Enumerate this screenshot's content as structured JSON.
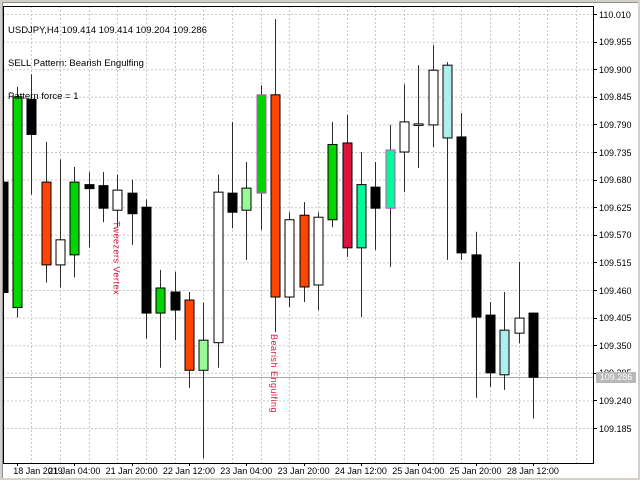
{
  "overlay": {
    "line1": "USDJPY,H4 109.414 109.414 109.204 109.286",
    "line2": "SELL Pattern: Bearish Engulfing",
    "line3": "Pattern force = 1"
  },
  "chart_data": {
    "type": "candlestick",
    "symbol": "USDJPY",
    "timeframe": "H4",
    "ohlc_display": {
      "open": "109.414",
      "high": "109.414",
      "low": "109.204",
      "close": "109.286"
    },
    "y_axis": {
      "max": 110.01,
      "min": 109.185,
      "step": 0.055,
      "labels": [
        "110.010",
        "109.955",
        "109.900",
        "109.845",
        "109.790",
        "109.735",
        "109.680",
        "109.625",
        "109.570",
        "109.515",
        "109.460",
        "109.405",
        "109.350",
        "109.295",
        "109.240",
        "109.185"
      ]
    },
    "x_axis": {
      "label_every_n_candles": 4,
      "labels": [
        "18 Jan 2019",
        "21 Jan 04:00",
        "21 Jan 20:00",
        "22 Jan 12:00",
        "23 Jan 04:00",
        "23 Jan 20:00",
        "24 Jan 12:00",
        "25 Jan 04:00",
        "25 Jan 20:00",
        "28 Jan 12:00"
      ]
    },
    "bid_line": {
      "price": 109.286,
      "tag": "109.286"
    },
    "annotations": [
      {
        "text": "Tweezers Vertex",
        "candle_index": 7,
        "anchor_price": 109.598
      },
      {
        "text": "Bearish Engulfing",
        "candle_index": 18,
        "anchor_price": 109.372
      }
    ],
    "partial_first_candle": {
      "o": 109.675,
      "h": 109.695,
      "l": 109.425,
      "c": 109.455,
      "color": "black"
    },
    "candles": [
      {
        "o": 109.425,
        "h": 109.865,
        "l": 109.405,
        "c": 109.845,
        "color": "green"
      },
      {
        "o": 109.84,
        "h": 109.89,
        "l": 109.65,
        "c": 109.77,
        "color": "black"
      },
      {
        "o": 109.675,
        "h": 109.755,
        "l": 109.475,
        "c": 109.51,
        "color": "orangered"
      },
      {
        "o": 109.51,
        "h": 109.72,
        "l": 109.465,
        "c": 109.56,
        "color": "white"
      },
      {
        "o": 109.53,
        "h": 109.705,
        "l": 109.485,
        "c": 109.675,
        "color": "green"
      },
      {
        "o": 109.67,
        "h": 109.695,
        "l": 109.545,
        "c": 109.662,
        "color": "black"
      },
      {
        "o": 109.668,
        "h": 109.695,
        "l": 109.595,
        "c": 109.623,
        "color": "black"
      },
      {
        "o": 109.619,
        "h": 109.69,
        "l": 109.585,
        "c": 109.659,
        "color": "white"
      },
      {
        "o": 109.653,
        "h": 109.68,
        "l": 109.55,
        "c": 109.612,
        "color": "black"
      },
      {
        "o": 109.625,
        "h": 109.64,
        "l": 109.363,
        "c": 109.414,
        "color": "black"
      },
      {
        "o": 109.414,
        "h": 109.5,
        "l": 109.305,
        "c": 109.464,
        "color": "green"
      },
      {
        "o": 109.456,
        "h": 109.496,
        "l": 109.36,
        "c": 109.42,
        "color": "black"
      },
      {
        "o": 109.44,
        "h": 109.456,
        "l": 109.265,
        "c": 109.3,
        "color": "orangered"
      },
      {
        "o": 109.3,
        "h": 109.435,
        "l": 109.125,
        "c": 109.36,
        "color": "palegreen"
      },
      {
        "o": 109.355,
        "h": 109.69,
        "l": 109.305,
        "c": 109.655,
        "color": "white"
      },
      {
        "o": 109.653,
        "h": 109.795,
        "l": 109.583,
        "c": 109.615,
        "color": "black"
      },
      {
        "o": 109.619,
        "h": 109.715,
        "l": 109.52,
        "c": 109.663,
        "color": "palegreen"
      },
      {
        "o": 109.653,
        "h": 109.868,
        "l": 109.58,
        "c": 109.849,
        "color": "green",
        "border": "magenta"
      },
      {
        "o": 109.849,
        "h": 110.0,
        "l": 109.376,
        "c": 109.446,
        "color": "orangered"
      },
      {
        "o": 109.446,
        "h": 109.615,
        "l": 109.426,
        "c": 109.6,
        "color": "white"
      },
      {
        "o": 109.609,
        "h": 109.635,
        "l": 109.436,
        "c": 109.466,
        "color": "orangered"
      },
      {
        "o": 109.47,
        "h": 109.615,
        "l": 109.42,
        "c": 109.605,
        "color": "white"
      },
      {
        "o": 109.6,
        "h": 109.795,
        "l": 109.585,
        "c": 109.75,
        "color": "green"
      },
      {
        "o": 109.753,
        "h": 109.809,
        "l": 109.526,
        "c": 109.544,
        "color": "crimson"
      },
      {
        "o": 109.544,
        "h": 109.735,
        "l": 109.406,
        "c": 109.67,
        "color": "springgreen"
      },
      {
        "o": 109.665,
        "h": 109.715,
        "l": 109.54,
        "c": 109.623,
        "color": "black"
      },
      {
        "o": 109.623,
        "h": 109.789,
        "l": 109.506,
        "c": 109.739,
        "color": "springgreen",
        "border": "magenta"
      },
      {
        "o": 109.735,
        "h": 109.87,
        "l": 109.655,
        "c": 109.795,
        "color": "white"
      },
      {
        "o": 109.788,
        "h": 109.908,
        "l": 109.703,
        "c": 109.791,
        "color": "white"
      },
      {
        "o": 109.789,
        "h": 109.948,
        "l": 109.745,
        "c": 109.898,
        "color": "white"
      },
      {
        "o": 109.908,
        "h": 109.914,
        "l": 109.52,
        "c": 109.763,
        "color": "paleturquoise"
      },
      {
        "o": 109.765,
        "h": 109.813,
        "l": 109.52,
        "c": 109.534,
        "color": "black"
      },
      {
        "o": 109.53,
        "h": 109.576,
        "l": 109.245,
        "c": 109.406,
        "color": "black"
      },
      {
        "o": 109.41,
        "h": 109.436,
        "l": 109.267,
        "c": 109.295,
        "color": "black"
      },
      {
        "o": 109.291,
        "h": 109.456,
        "l": 109.261,
        "c": 109.38,
        "color": "paleturquoise"
      },
      {
        "o": 109.374,
        "h": 109.516,
        "l": 109.354,
        "c": 109.404,
        "color": "white"
      },
      {
        "o": 109.414,
        "h": 109.414,
        "l": 109.204,
        "c": 109.286,
        "color": "black"
      }
    ],
    "colors": {
      "green": "#00D500",
      "black": "#000000",
      "white": "#FFFFFF",
      "orangered": "#FF4500",
      "crimson": "#DC143C",
      "springgreen": "#00FA9A",
      "palegreen": "#98FB98",
      "paleturquoise": "#AFEEEE",
      "magenta": "#C84BC8",
      "wick": "#2b2b2b",
      "grid": "#c6c6c6",
      "border": "#000000",
      "bid_line": "#a9a9a9",
      "bid_tag_bg": "#b8b8b8",
      "annotation": "#DC143C"
    }
  }
}
